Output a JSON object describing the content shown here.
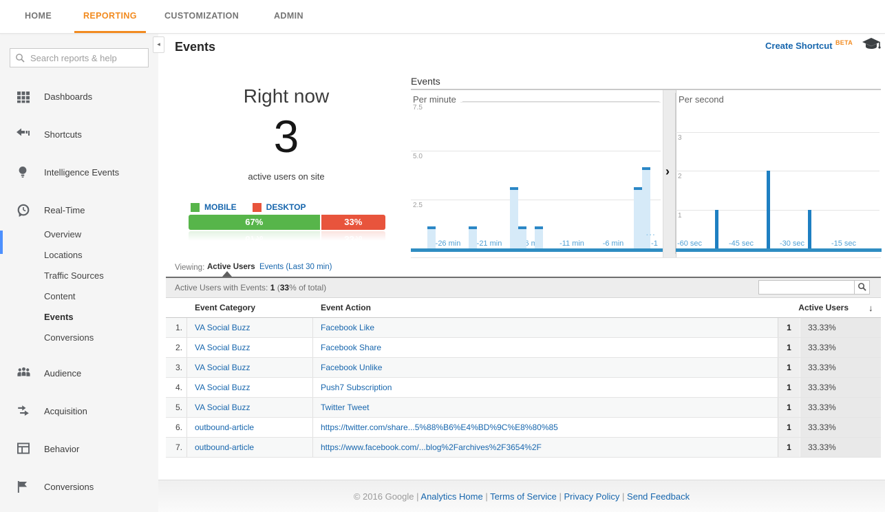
{
  "nav": {
    "tabs": [
      {
        "label": "HOME",
        "active": false
      },
      {
        "label": "REPORTING",
        "active": true
      },
      {
        "label": "CUSTOMIZATION",
        "active": false
      },
      {
        "label": "ADMIN",
        "active": false
      }
    ]
  },
  "sidebar": {
    "search_placeholder": "Search reports & help",
    "collapse_icon": "◂",
    "items": [
      {
        "label": "Dashboards",
        "icon": "dashboards-icon"
      },
      {
        "label": "Shortcuts",
        "icon": "shortcuts-icon"
      },
      {
        "label": "Intelligence Events",
        "icon": "intelligence-events-icon"
      },
      {
        "label": "Real-Time",
        "icon": "real-time-icon",
        "active": true,
        "children": [
          "Overview",
          "Locations",
          "Traffic Sources",
          "Content",
          "Events",
          "Conversions"
        ],
        "active_child": "Events"
      },
      {
        "label": "Audience",
        "icon": "audience-icon"
      },
      {
        "label": "Acquisition",
        "icon": "acquisition-icon"
      },
      {
        "label": "Behavior",
        "icon": "behavior-icon"
      },
      {
        "label": "Conversions",
        "icon": "conversions-icon"
      }
    ]
  },
  "header": {
    "title": "Events",
    "create_shortcut": "Create Shortcut",
    "beta": "BETA"
  },
  "right_now": {
    "title": "Right now",
    "count": "3",
    "subtitle": "active users on site",
    "legend": [
      {
        "label": "MOBILE",
        "color": "#57b54a",
        "share": "67%"
      },
      {
        "label": "DESKTOP",
        "color": "#e8543c",
        "share": "33%"
      }
    ]
  },
  "chart_data": [
    {
      "type": "bar",
      "title": "Events",
      "panel": "Per minute",
      "ylim": [
        0,
        7.5
      ],
      "yticks": [
        {
          "v": 2.5,
          "label": "2.5"
        },
        {
          "v": 5,
          "label": "5.0"
        },
        {
          "v": 7.5,
          "label": "7.5"
        }
      ],
      "x_range": [
        -30.5,
        0
      ],
      "x_ticks": [
        {
          "pos": -26,
          "label": "-26 min"
        },
        {
          "pos": -21,
          "label": "-21 min"
        },
        {
          "pos": -16,
          "label": "-16 min"
        },
        {
          "pos": -11,
          "label": "-11 min"
        },
        {
          "pos": -6,
          "label": "-6 min"
        },
        {
          "pos": -1,
          "label": "-1"
        }
      ],
      "partial_indicator": "...",
      "bars": [
        {
          "x": -28,
          "value": 1
        },
        {
          "x": -23,
          "value": 1
        },
        {
          "x": -18,
          "value": 3
        },
        {
          "x": -17,
          "value": 1
        },
        {
          "x": -15,
          "value": 1
        },
        {
          "x": -3,
          "value": 3
        },
        {
          "x": -2,
          "value": 4
        }
      ],
      "grid": true,
      "legend_position": "none"
    },
    {
      "type": "bar",
      "panel": "Per second",
      "ylim": [
        0,
        3.5
      ],
      "yticks": [
        {
          "v": 1,
          "label": "1"
        },
        {
          "v": 2,
          "label": "2"
        },
        {
          "v": 3,
          "label": "3"
        }
      ],
      "x_range": [
        -64,
        -4
      ],
      "x_ticks": [
        {
          "pos": -60,
          "label": "-60 sec"
        },
        {
          "pos": -45,
          "label": "-45 sec"
        },
        {
          "pos": -30,
          "label": "-30 sec"
        },
        {
          "pos": -15,
          "label": "-15 sec"
        }
      ],
      "bars": [
        {
          "x": -52,
          "value": 1
        },
        {
          "x": -37,
          "value": 2
        },
        {
          "x": -25,
          "value": 1
        }
      ],
      "grid": true,
      "legend_position": "none"
    }
  ],
  "viewing": {
    "label": "Viewing:",
    "tabs": [
      {
        "label": "Active Users",
        "active": true
      },
      {
        "label": "Events (Last 30 min)",
        "active": false
      }
    ]
  },
  "table": {
    "summary": {
      "prefix": "Active Users with Events: ",
      "value": "1",
      "open": " (",
      "percent": "33",
      "suffix": "% of total)"
    },
    "search_value": "",
    "sort_icon": "↓",
    "columns": [
      "Event Category",
      "Event Action",
      "Active Users"
    ],
    "rows": [
      {
        "rank": "1.",
        "category": "VA Social Buzz",
        "action": "Facebook Like",
        "users": "1",
        "percent": "33.33%"
      },
      {
        "rank": "2.",
        "category": "VA Social Buzz",
        "action": "Facebook Share",
        "users": "1",
        "percent": "33.33%"
      },
      {
        "rank": "3.",
        "category": "VA Social Buzz",
        "action": "Facebook Unlike",
        "users": "1",
        "percent": "33.33%"
      },
      {
        "rank": "4.",
        "category": "VA Social Buzz",
        "action": "Push7 Subscription",
        "users": "1",
        "percent": "33.33%"
      },
      {
        "rank": "5.",
        "category": "VA Social Buzz",
        "action": "Twitter Tweet",
        "users": "1",
        "percent": "33.33%"
      },
      {
        "rank": "6.",
        "category": "outbound-article",
        "action": "https://twitter.com/share...5%88%B6%E4%BD%9C%E8%80%85",
        "users": "1",
        "percent": "33.33%"
      },
      {
        "rank": "7.",
        "category": "outbound-article",
        "action": "https://www.facebook.com/...blog%2Farchives%2F3654%2F",
        "users": "1",
        "percent": "33.33%"
      }
    ]
  },
  "footer": {
    "copyright": "© 2016 Google",
    "separator": "|",
    "links": [
      "Analytics Home",
      "Terms of Service",
      "Privacy Policy",
      "Send Feedback"
    ]
  }
}
